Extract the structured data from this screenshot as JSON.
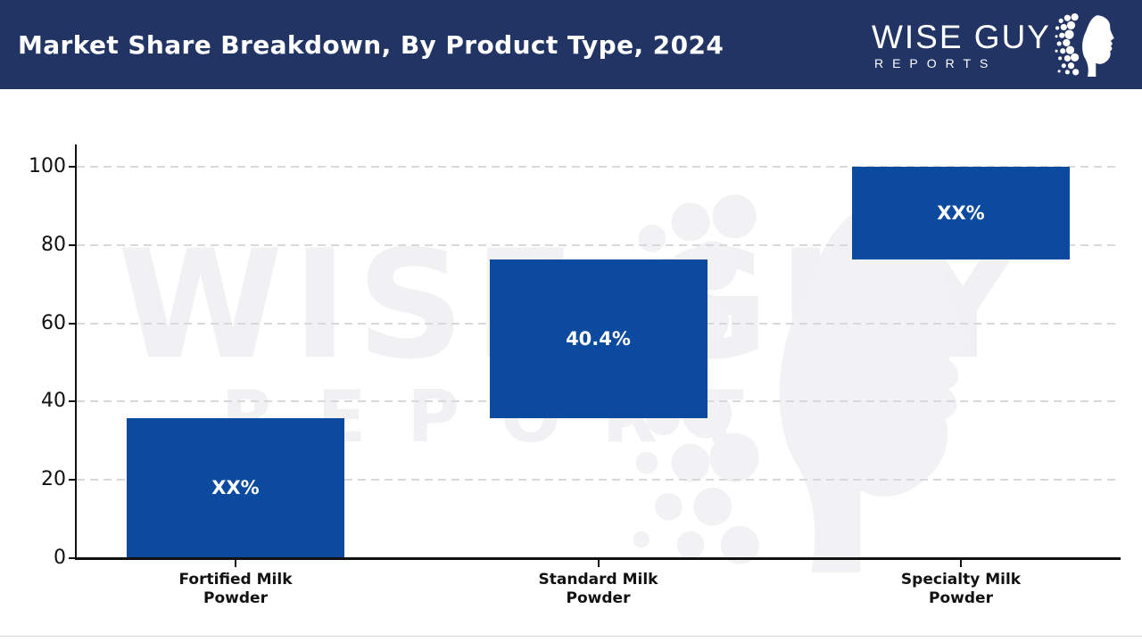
{
  "colors": {
    "header_bg": "#213464",
    "bar": "#0b4a9e",
    "grid": "#d9d9d9",
    "axis": "#111111",
    "watermark": "#f1f1f4",
    "bar_label": "#ffffff"
  },
  "header": {
    "title": "Market Share Breakdown, By Product Type, 2024",
    "logo": {
      "line1": "WISE GUY",
      "line2": "REPORTS"
    }
  },
  "watermark": {
    "line1": "WISE GUY",
    "line2": "REPORTS"
  },
  "chart_data": {
    "type": "bar",
    "variant": "waterfall-stacked-segments",
    "title": "Market Share Breakdown, By Product Type, 2024",
    "categories": [
      "Fortified Milk Powder",
      "Standard Milk Powder",
      "Specialty Milk Powder"
    ],
    "segments": [
      {
        "category": "Fortified Milk Powder",
        "start": 0,
        "end": 35.8,
        "label": "XX%"
      },
      {
        "category": "Standard Milk Powder",
        "start": 35.8,
        "end": 76.2,
        "label": "40.4%"
      },
      {
        "category": "Specialty Milk Powder",
        "start": 76.2,
        "end": 100,
        "label": "XX%"
      }
    ],
    "yticks": [
      0,
      20,
      40,
      60,
      80,
      100
    ],
    "ylim": [
      0,
      100
    ],
    "xlabel": "",
    "ylabel": "",
    "grid": "horizontal-dashed",
    "legend": false,
    "bar_value_unit": "%"
  }
}
